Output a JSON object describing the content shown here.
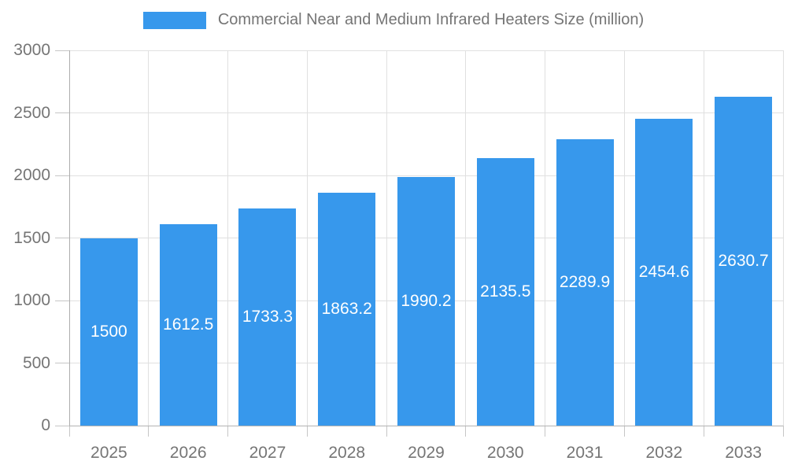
{
  "legend": {
    "label": "Commercial Near and Medium Infrared Heaters Size (million)",
    "swatch_color": "#3798ec"
  },
  "chart_data": {
    "type": "bar",
    "title": "Commercial Near and Medium Infrared Heaters Size (million)",
    "categories": [
      "2025",
      "2026",
      "2027",
      "2028",
      "2029",
      "2030",
      "2031",
      "2032",
      "2033"
    ],
    "series": [
      {
        "name": "Commercial Near and Medium Infrared Heaters Size (million)",
        "values": [
          1500,
          1612.5,
          1733.3,
          1863.2,
          1990.2,
          2135.5,
          2289.9,
          2454.6,
          2630.7
        ]
      }
    ],
    "xlabel": "",
    "ylabel": "",
    "ylim": [
      0,
      3000
    ],
    "yticks": [
      0,
      500,
      1000,
      1500,
      2000,
      2500,
      3000
    ],
    "grid": true,
    "legend_position": "top",
    "bar_color": "#3798ec",
    "bar_value_label_color": "#ffffff",
    "axis_text_color": "#757575"
  }
}
